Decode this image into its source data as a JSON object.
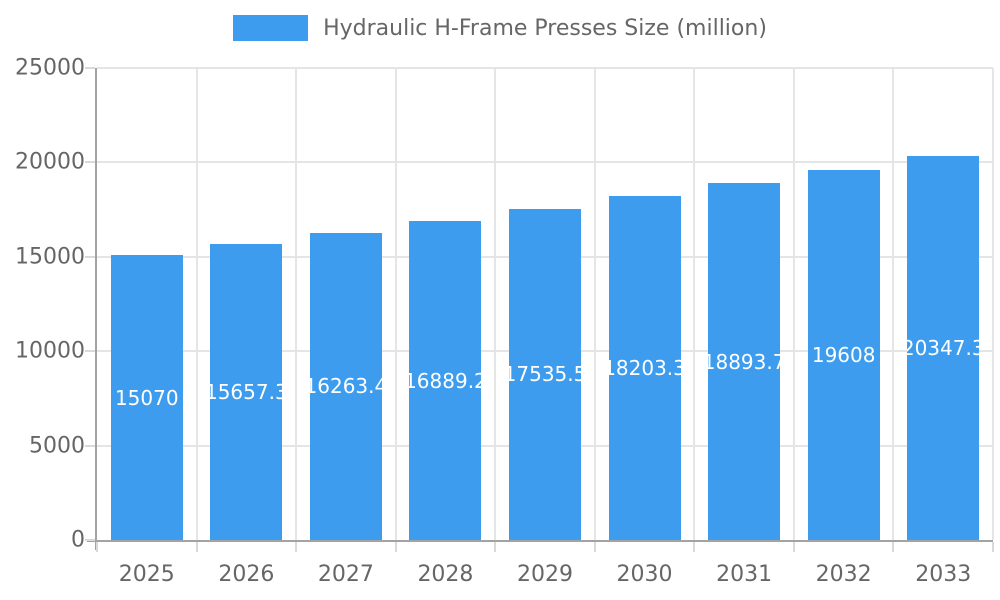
{
  "legend": {
    "position": "top",
    "label": "Hydraulic H-Frame Presses Size (million)"
  },
  "chart_data": {
    "type": "bar",
    "title": "Hydraulic H-Frame Presses Size (million)",
    "series_name": "Hydraulic H-Frame Presses Size (million)",
    "categories": [
      "2025",
      "2026",
      "2027",
      "2028",
      "2029",
      "2030",
      "2031",
      "2032",
      "2033"
    ],
    "values": [
      15070,
      15657.3,
      16263.4,
      16889.2,
      17535.5,
      18203.3,
      18893.7,
      19608,
      20347.3
    ],
    "bar_labels": [
      "15070",
      "15657.3",
      "16263.4",
      "16889.2",
      "17535.5",
      "18203.3",
      "18893.7",
      "19608",
      "20347.3"
    ],
    "xlabel": "",
    "ylabel": "",
    "ylim": [
      0,
      25000
    ],
    "y_ticks": [
      0,
      5000,
      10000,
      15000,
      20000,
      25000
    ],
    "y_tick_labels": [
      "0",
      "5000",
      "10000",
      "15000",
      "20000",
      "25000"
    ],
    "grid": true,
    "legend_position": "top",
    "colors": {
      "bar": "#3d9cee",
      "bar_label_text": "#ffffff",
      "axis_text": "#666666",
      "gridline": "#e5e5e5",
      "tick_mark": "#d9d9d9",
      "axis_line": "#a3a3a3"
    }
  }
}
